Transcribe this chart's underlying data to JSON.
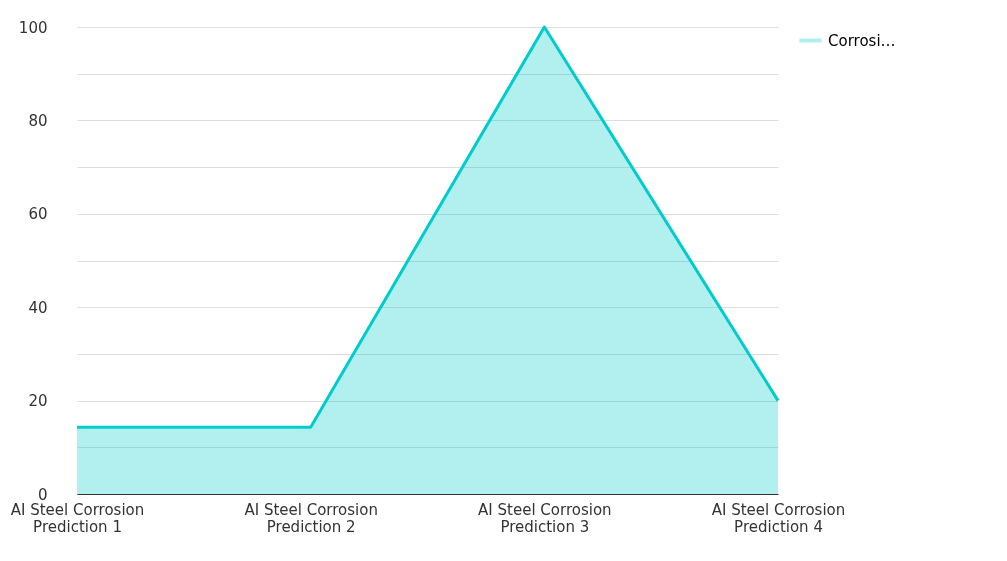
{
  "chart_data": {
    "type": "area",
    "categories": [
      "AI Steel Corrosion Prediction 1",
      "AI Steel Corrosion Prediction 2",
      "AI Steel Corrosion Prediction 3",
      "AI Steel Corrosion Prediction 4"
    ],
    "series": [
      {
        "name": "Corrosi…",
        "color": "#00cccc",
        "values": [
          14.3,
          14.3,
          100,
          20
        ]
      }
    ],
    "ylim": [
      0,
      100
    ],
    "yticks": [
      0,
      {
        "value": 10,
        "label": null
      },
      20,
      {
        "value": 30,
        "label": null
      },
      40,
      {
        "value": 50,
        "label": null
      },
      60,
      {
        "value": 70,
        "label": null
      },
      80,
      {
        "value": 90,
        "label": null
      },
      100
    ],
    "grid": "y",
    "legend": "top right"
  }
}
